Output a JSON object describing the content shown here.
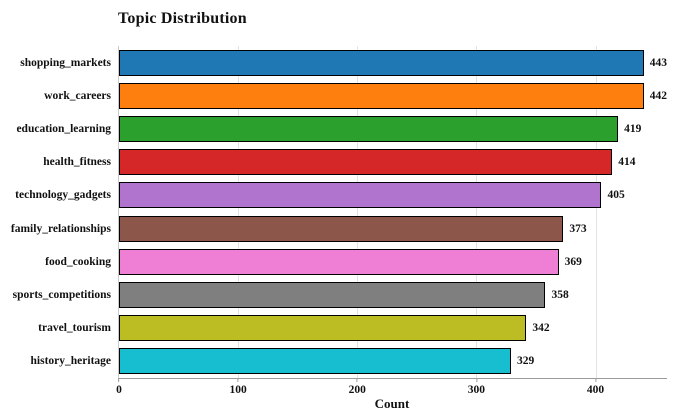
{
  "chart_data": {
    "type": "bar",
    "orientation": "horizontal",
    "title": "Topic Distribution",
    "xlabel": "Count",
    "ylabel": "",
    "categories": [
      "shopping_markets",
      "work_careers",
      "education_learning",
      "health_fitness",
      "technology_gadgets",
      "family_relationships",
      "food_cooking",
      "sports_competitions",
      "travel_tourism",
      "history_heritage"
    ],
    "values": [
      443,
      442,
      419,
      414,
      405,
      373,
      369,
      358,
      342,
      329
    ],
    "colors": [
      "#1f77b4",
      "#ff7f0e",
      "#2ca02c",
      "#d62728",
      "#b073ce",
      "#8c564b",
      "#ef7fd4",
      "#7f7f7f",
      "#bcbd22",
      "#17becf"
    ],
    "bar_edge_color": "#000000",
    "xticks": [
      0,
      100,
      200,
      300,
      400
    ],
    "xlim": [
      0,
      460
    ],
    "grid": true,
    "grid_color": "#e3e3e3",
    "legend_position": "none"
  }
}
